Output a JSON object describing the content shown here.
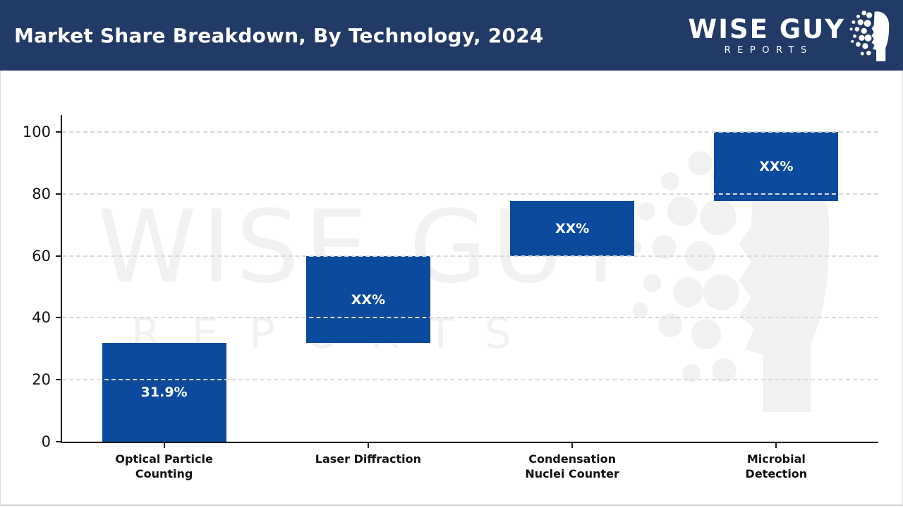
{
  "header": {
    "title": "Market Share Breakdown, By Technology, 2024",
    "logo": {
      "line1": "WISE GUY",
      "line2": "REPORTS"
    }
  },
  "watermark": {
    "line1": "WISE GUY",
    "line2": "REPORTS"
  },
  "chart_data": {
    "type": "bar",
    "subtype": "waterfall",
    "title": "Market Share Breakdown, By Technology, 2024",
    "categories": [
      "Optical Particle\nCounting",
      "Laser Diffraction",
      "Condensation\nNuclei Counter",
      "Microbial\nDetection"
    ],
    "series": [
      {
        "name": "Optical Particle Counting",
        "start": 0,
        "end": 31.9,
        "label": "31.9%"
      },
      {
        "name": "Laser Diffraction",
        "start": 31.9,
        "end": 59.8,
        "label": "XX%"
      },
      {
        "name": "Condensation Nuclei Counter",
        "start": 59.8,
        "end": 77.6,
        "label": "XX%"
      },
      {
        "name": "Microbial Detection",
        "start": 77.6,
        "end": 100,
        "label": "XX%"
      }
    ],
    "yticks": [
      0,
      20,
      40,
      60,
      80,
      100
    ],
    "ylim": [
      0,
      105.5
    ],
    "xlabel": "",
    "ylabel": "",
    "grid": "horizontal-dashed",
    "legend": "none",
    "bar_color": "#0b4a9c",
    "label_color": "#ffffff"
  },
  "colors": {
    "header_bg": "#213a66",
    "axis": "#1a1a1a",
    "grid": "#d9d9d9",
    "watermark": "#f1f1f1"
  }
}
